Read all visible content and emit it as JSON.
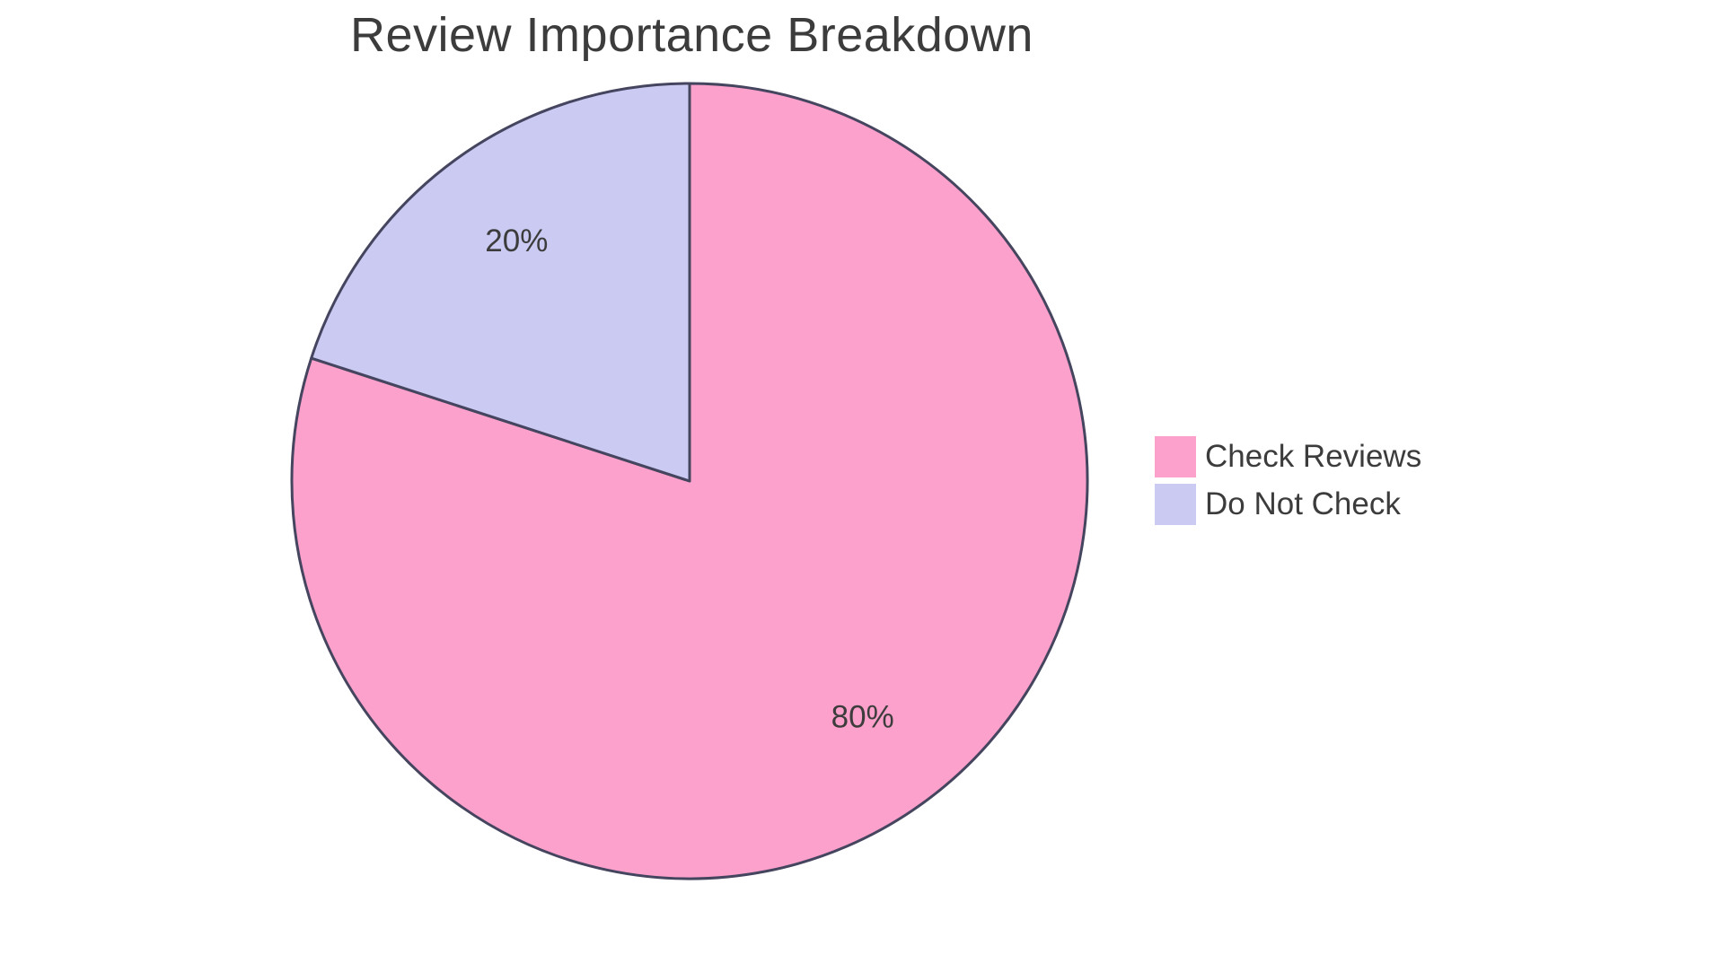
{
  "chart_data": {
    "type": "pie",
    "title": "Review Importance Breakdown",
    "slices": [
      {
        "label": "Check Reviews",
        "value": 80,
        "percent_label": "80%",
        "color": "#FCA1CB"
      },
      {
        "label": "Do Not Check",
        "value": 20,
        "percent_label": "20%",
        "color": "#CACAF3"
      }
    ],
    "start_angle": "12 o'clock",
    "direction": "clockwise",
    "outline_color": "#45455F",
    "text_color": "#3C3C3C",
    "background_color": "#FFFFFF",
    "legend_position": "right",
    "grid": false
  }
}
